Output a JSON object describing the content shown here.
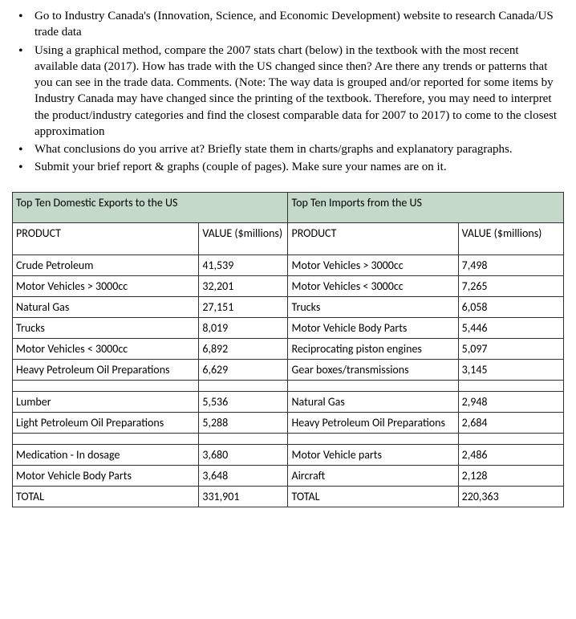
{
  "bullets": [
    "Go to Industry Canada's (Innovation, Science, and Economic Development) website to research Canada/US trade data",
    "Using a graphical method, compare the 2007 stats chart (below) in the textbook with the most recent available data (2017).  How has trade with the US changed since then?  Are there any trends or patterns that you can see in the trade data. Comments.  (Note:  The way data is grouped and/or reported for some items by Industry Canada may have changed since the printing of the textbook.  Therefore, you may need to interpret the product/industry categories and find the closest comparable data for 2007 to 2017) to come to the closest approximation",
    "What conclusions do you arrive at? Briefly state them in charts/graphs and explanatory paragraphs.",
    "Submit your brief report & graphs (couple of pages).  Make sure your names are on it."
  ],
  "table": {
    "section_header_left": "Top Ten Domestic Exports to the US",
    "section_header_right": "Top Ten Imports from  the US",
    "col_headers": {
      "product_left": "PRODUCT",
      "value_left": "VALUE ($millions)",
      "product_right": "PRODUCT",
      "value_right": "VALUE ($millions)"
    },
    "rows_block1": [
      {
        "lp": "Crude Petroleum",
        "lv": "41,539",
        "rp": "Motor Vehicles > 3000cc",
        "rv": "7,498"
      },
      {
        "lp": "Motor Vehicles > 3000cc",
        "lv": "32,201",
        "rp": "Motor Vehicles < 3000cc",
        "rv": "7,265"
      },
      {
        "lp": "Natural Gas",
        "lv": "27,151",
        "rp": "Trucks",
        "rv": "6,058"
      },
      {
        "lp": "Trucks",
        "lv": "8,019",
        "rp": "Motor Vehicle Body Parts",
        "rv": "5,446"
      },
      {
        "lp": "Motor Vehicles < 3000cc",
        "lv": "6,892",
        "rp": "Reciprocating piston engines",
        "rv": "5,097"
      },
      {
        "lp": "Heavy Petroleum Oil Preparations",
        "lv": "6,629",
        "rp": "Gear boxes/transmissions",
        "rv": "3,145"
      }
    ],
    "rows_block2": [
      {
        "lp": "Lumber",
        "lv": "5,536",
        "rp": "Natural Gas",
        "rv": "2,948"
      },
      {
        "lp": "Light Petroleum Oil Preparations",
        "lv": "5,288",
        "rp": "Heavy Petroleum Oil Preparations",
        "rv": "2,684"
      }
    ],
    "rows_block3": [
      {
        "lp": "Medication - In dosage",
        "lv": "3,680",
        "rp": "Motor Vehicle parts",
        "rv": "2,486"
      },
      {
        "lp": "Motor Vehicle Body Parts",
        "lv": "3,648",
        "rp": "Aircraft",
        "rv": "2,128"
      },
      {
        "lp": "TOTAL",
        "lv": "331,901",
        "rp": "TOTAL",
        "rv": "220,363"
      }
    ],
    "style": {
      "header_bg": "#c5d9ca",
      "border_color": "#333333",
      "font_family": "Calibri",
      "font_size": 14,
      "body_font": "Times New Roman",
      "body_font_size": 15
    }
  }
}
